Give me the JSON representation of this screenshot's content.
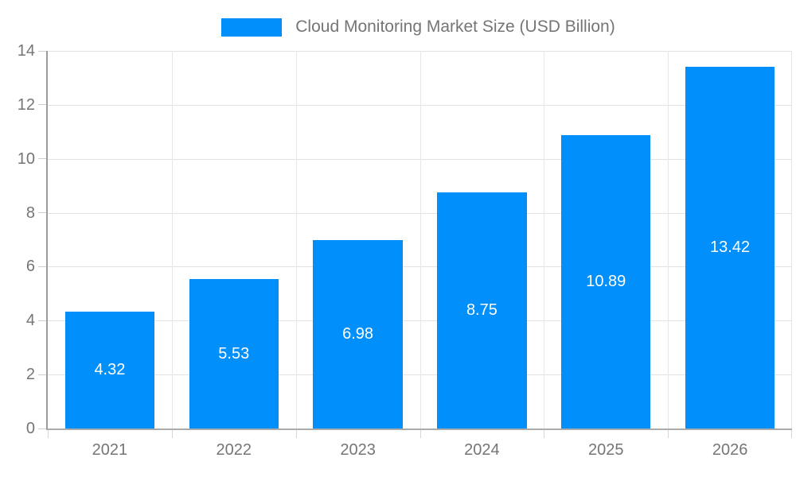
{
  "legend": {
    "label": "Cloud Monitoring Market Size (USD Billion)"
  },
  "colors": {
    "bar": "#008FFB",
    "axis_line": "#9b9b9b",
    "gridline": "#e3e3e3",
    "tick_text": "#757575",
    "value_label_text": "#ffffff"
  },
  "chart_data": {
    "type": "bar",
    "title": "Cloud Monitoring Market Size (USD Billion)",
    "series_name": "Cloud Monitoring Market Size (USD Billion)",
    "categories": [
      "2021",
      "2022",
      "2023",
      "2024",
      "2025",
      "2026"
    ],
    "values": [
      4.32,
      5.53,
      6.98,
      8.75,
      10.89,
      13.42
    ],
    "xlabel": "",
    "ylabel": "",
    "ylim": [
      0,
      14
    ],
    "yticks": [
      0,
      2,
      4,
      6,
      8,
      10,
      12,
      14
    ],
    "grid": true,
    "legend_position": "top",
    "value_labels": "inside-center",
    "bar_color": "#008FFB"
  }
}
